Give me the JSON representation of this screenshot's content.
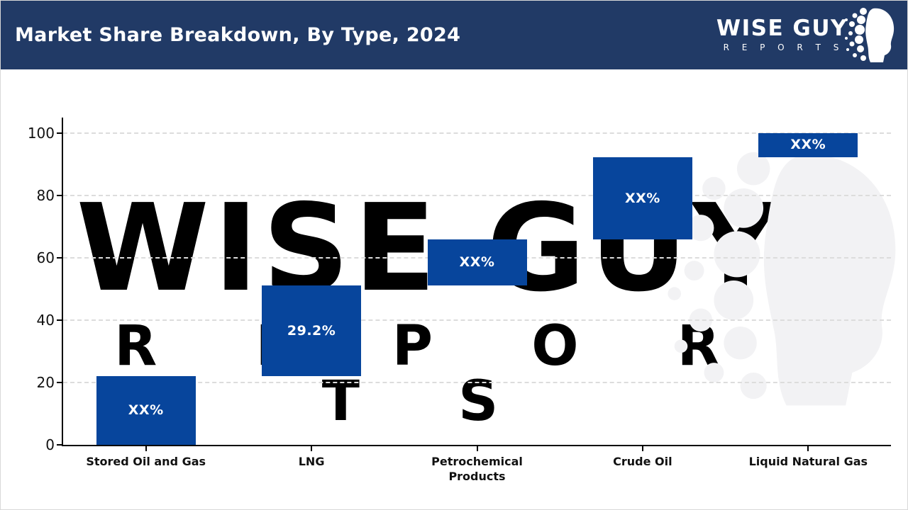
{
  "header": {
    "title": "Market Share Breakdown, By Type, 2024",
    "logo": {
      "line1": "WISE GUY",
      "line2": "R E P O R T S"
    }
  },
  "watermark": {
    "line1": "WISE GUY",
    "line2": "R E P O R T S"
  },
  "chart_data": {
    "type": "bar",
    "subtype": "waterfall",
    "title": "Market Share Breakdown, By Type, 2024",
    "categories": [
      "Stored Oil and Gas",
      "LNG",
      "Petrochemical\nProducts",
      "Crude Oil",
      "Liquid Natural Gas"
    ],
    "segments": [
      {
        "start": 0,
        "end": 22,
        "label": "XX%"
      },
      {
        "start": 22,
        "end": 51.2,
        "label": "29.2%"
      },
      {
        "start": 51.2,
        "end": 65.9,
        "label": "XX%"
      },
      {
        "start": 65.9,
        "end": 92.3,
        "label": "XX%"
      },
      {
        "start": 92.3,
        "end": 100,
        "label": "XX%"
      }
    ],
    "xlabel": "",
    "ylabel": "",
    "ylim": [
      0,
      105
    ],
    "yticks": [
      0,
      20,
      40,
      60,
      80,
      100
    ],
    "grid": "horizontal-dashed",
    "legend": "none",
    "colors": {
      "bar": "#07459c",
      "header_background": "#213a66",
      "gridline": "#dcdcdc",
      "watermark": "#f2f2f4",
      "axis": "#000000",
      "bar_label_text": "#ffffff",
      "tick_label_text": "#111111"
    }
  }
}
